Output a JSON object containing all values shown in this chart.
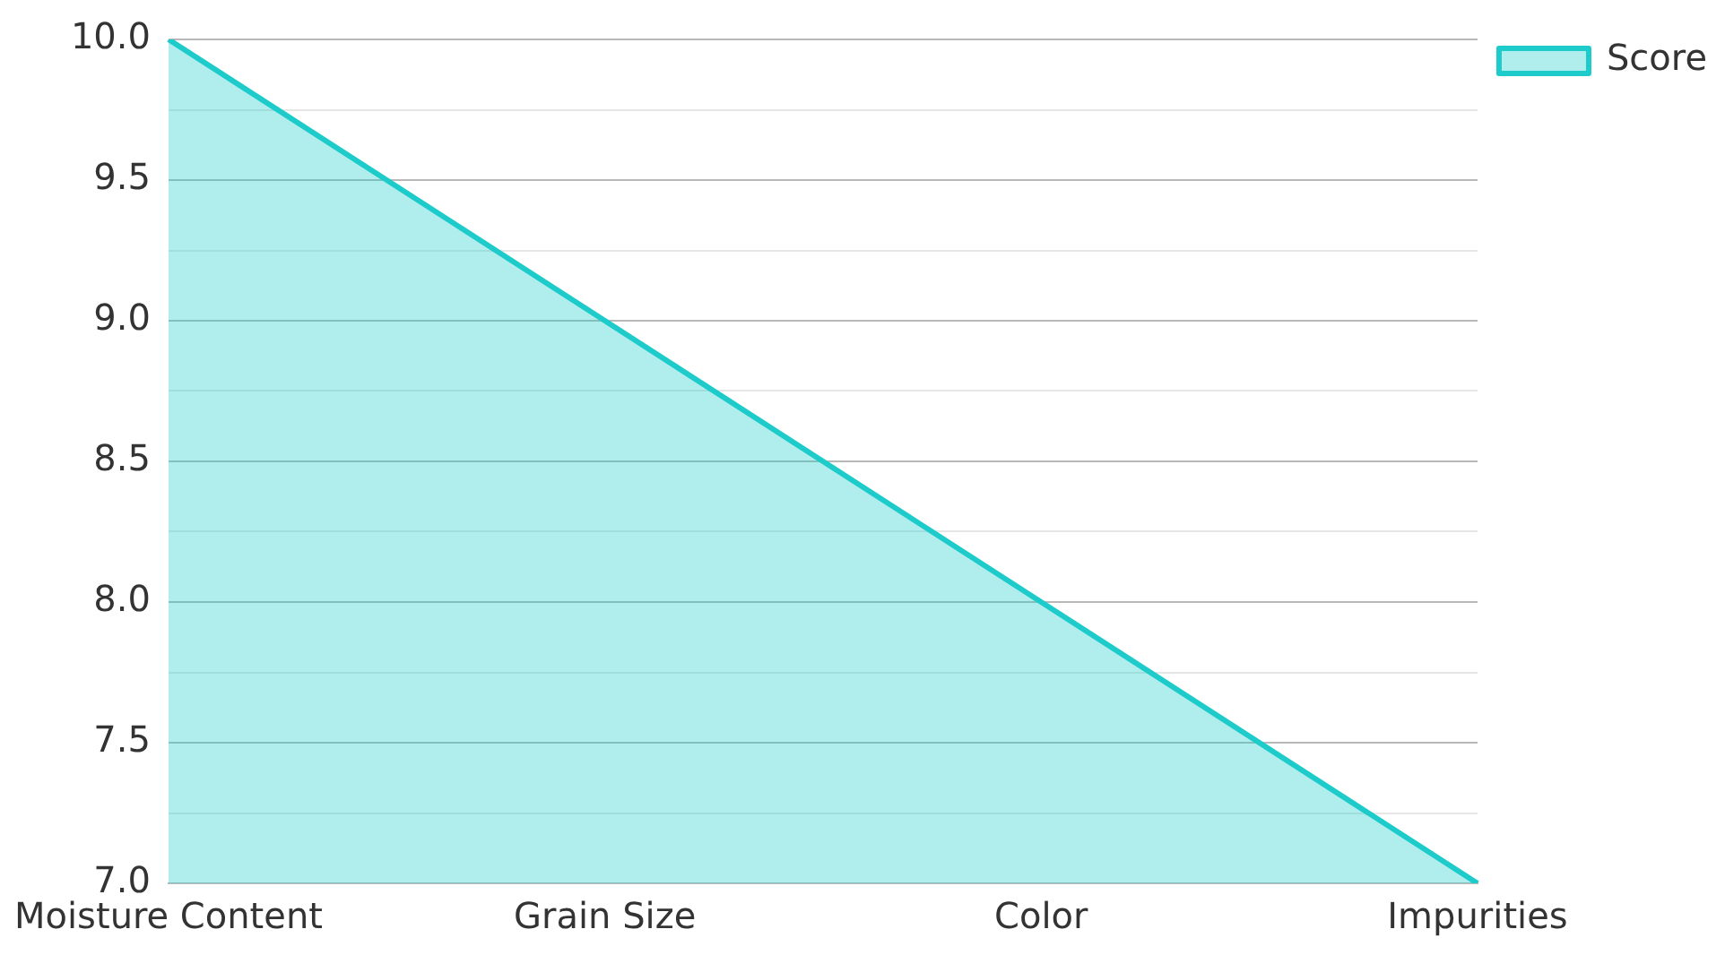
{
  "chart_data": {
    "type": "area",
    "categories": [
      "Moisture Content",
      "Grain Size",
      "Color",
      "Impurities"
    ],
    "series": [
      {
        "name": "Score",
        "color": "#1ecbcb",
        "values": [
          10,
          9,
          8,
          7
        ]
      }
    ],
    "ylim": [
      7,
      10
    ],
    "yticks": [
      {
        "value": 7,
        "label": "7.0"
      },
      {
        "value": 7.25,
        "label": null
      },
      {
        "value": 7.5,
        "label": "7.5"
      },
      {
        "value": 7.75,
        "label": null
      },
      {
        "value": 8,
        "label": "8.0"
      },
      {
        "value": 8.25,
        "label": null
      },
      {
        "value": 8.5,
        "label": "8.5"
      },
      {
        "value": 8.75,
        "label": null
      },
      {
        "value": 9,
        "label": "9.0"
      },
      {
        "value": 9.25,
        "label": null
      },
      {
        "value": 9.5,
        "label": "9.5"
      },
      {
        "value": 9.75,
        "label": null
      },
      {
        "value": 10,
        "label": "10.0"
      }
    ],
    "grid": "y",
    "legend": "top right"
  }
}
